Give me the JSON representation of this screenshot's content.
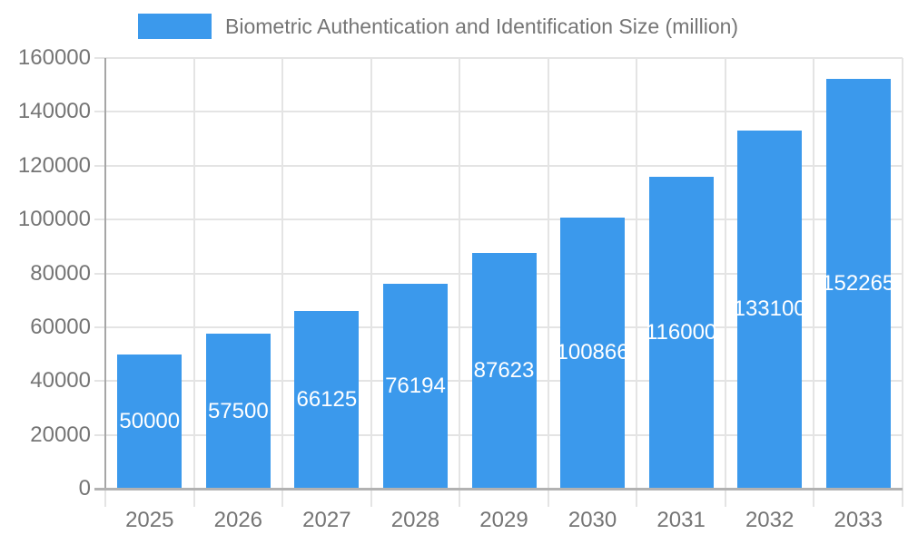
{
  "legend": {
    "label": "Biometric Authentication and Identification Size (million)",
    "swatch_color": "#3b99ec"
  },
  "chart_data": {
    "type": "bar",
    "title": "Biometric Authentication and Identification Size (million)",
    "categories": [
      "2025",
      "2026",
      "2027",
      "2028",
      "2029",
      "2030",
      "2031",
      "2032",
      "2033"
    ],
    "values": [
      50000,
      57500,
      66125,
      76194,
      87623,
      100866,
      116000,
      133100,
      152265
    ],
    "xlabel": "",
    "ylabel": "",
    "ylim": [
      0,
      160000
    ],
    "yticks": [
      0,
      20000,
      40000,
      60000,
      80000,
      100000,
      120000,
      140000,
      160000
    ],
    "grid": true,
    "legend_position": "top-left",
    "bar_color": "#3b99ec",
    "value_label_color": "#ffffff",
    "axis_text_color": "#757575",
    "gridline_color": "#e4e4e4"
  }
}
